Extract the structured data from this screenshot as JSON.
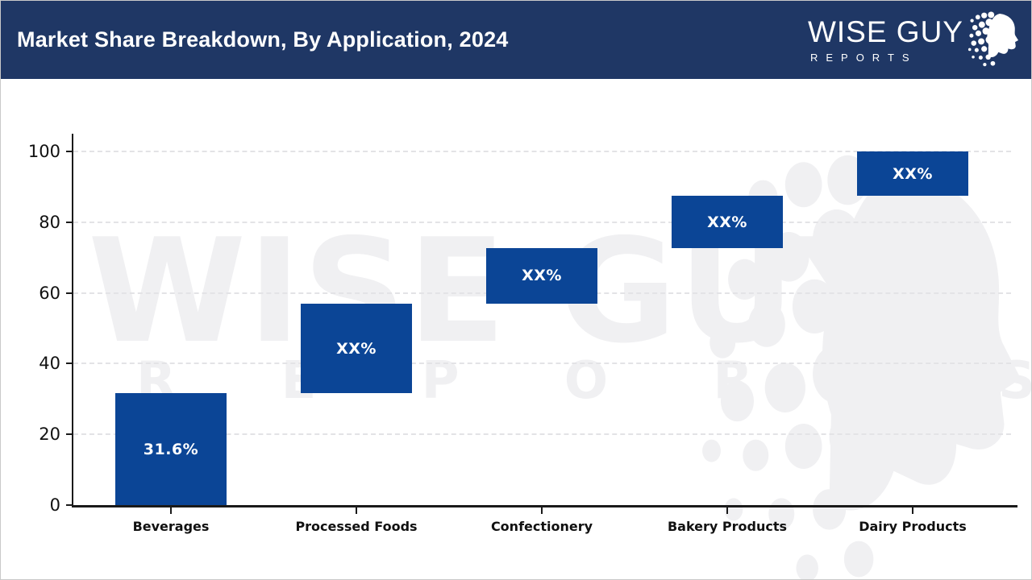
{
  "header": {
    "title": "Market Share Breakdown, By Application, 2024",
    "logo": {
      "line1": "WISE GUY",
      "line2": "REPORTS"
    }
  },
  "watermark": {
    "line1": "WISE GUY",
    "line2": "R E P O R T S"
  },
  "colors": {
    "header_bg": "#1f3765",
    "bar": "#0b4596",
    "bar_label_text": "#ffffff",
    "grid": "#e3e3e6",
    "axis": "#1a1a1a",
    "tick_text": "#111111",
    "watermark": "#f0f0f2",
    "frame_border": "#c9c9c9"
  },
  "chart_data": {
    "type": "bar",
    "subtype": "floating-waterfall",
    "title": "Market Share Breakdown, By Application, 2024",
    "categories": [
      "Beverages",
      "Processed Foods",
      "Confectionery",
      "Bakery Products",
      "Dairy Products"
    ],
    "segments": [
      {
        "label": "31.6%",
        "start": 0,
        "end": 31.6
      },
      {
        "label": "XX%",
        "start": 31.6,
        "end": 57.0
      },
      {
        "label": "XX%",
        "start": 57.0,
        "end": 72.7
      },
      {
        "label": "XX%",
        "start": 72.7,
        "end": 87.4
      },
      {
        "label": "XX%",
        "start": 87.4,
        "end": 100.0
      }
    ],
    "values": [
      31.6,
      25.4,
      15.7,
      14.7,
      12.6
    ],
    "xlabel": "",
    "ylabel": "",
    "ylim": [
      0,
      100
    ],
    "yticks": [
      0,
      20,
      40,
      60,
      80,
      100
    ],
    "grid": "horizontal-dashed",
    "legend": "none"
  }
}
